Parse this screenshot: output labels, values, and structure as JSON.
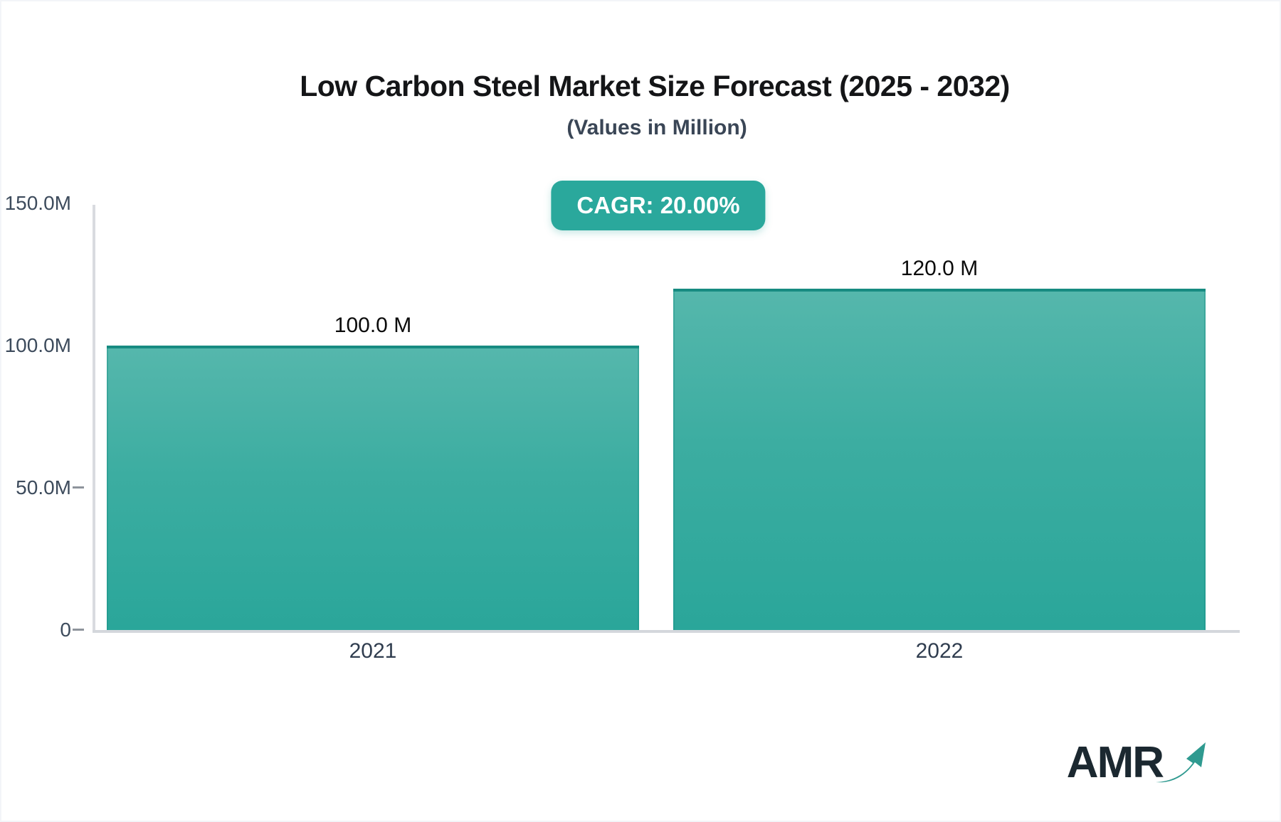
{
  "header": {
    "title": "Low Carbon Steel Market Size Forecast (2025 - 2032)",
    "subtitle": "(Values in Million)",
    "cagr_label": "CAGR: 20.00%"
  },
  "logo": {
    "text": "AMR",
    "arrow_icon": "trend-up-arrow"
  },
  "colors": {
    "accent_teal": "#2aa89c",
    "bar_gradient_top": "#55b7ac",
    "bar_gradient_bottom": "#2aa69a",
    "bar_top_border": "#178b81",
    "axis_line": "#d4d7dc",
    "tick_text": "#3d4b5c",
    "title_text": "#141517",
    "subtitle_text": "#3a4656",
    "logo_text": "#1b2830",
    "logo_arrow": "#2f9a90"
  },
  "chart_data": {
    "type": "bar",
    "title": "Low Carbon Steel Market Size Forecast (2025 - 2032)",
    "subtitle": "(Values in Million)",
    "annotation": "CAGR: 20.00%",
    "categories": [
      "2021",
      "2022"
    ],
    "values": [
      100.0,
      120.0
    ],
    "value_labels": [
      "100.0 M",
      "120.0 M"
    ],
    "unit": "Million",
    "xlabel": "",
    "ylabel": "",
    "ylim": [
      0,
      150
    ],
    "y_ticks": [
      {
        "label": "150.0M",
        "value": 150,
        "dash": false
      },
      {
        "label": "100.0M",
        "value": 100,
        "dash": false
      },
      {
        "label": "50.0M",
        "value": 50,
        "dash": true
      },
      {
        "label": "0",
        "value": 0,
        "dash": true
      }
    ],
    "grid": false,
    "legend": "none"
  }
}
